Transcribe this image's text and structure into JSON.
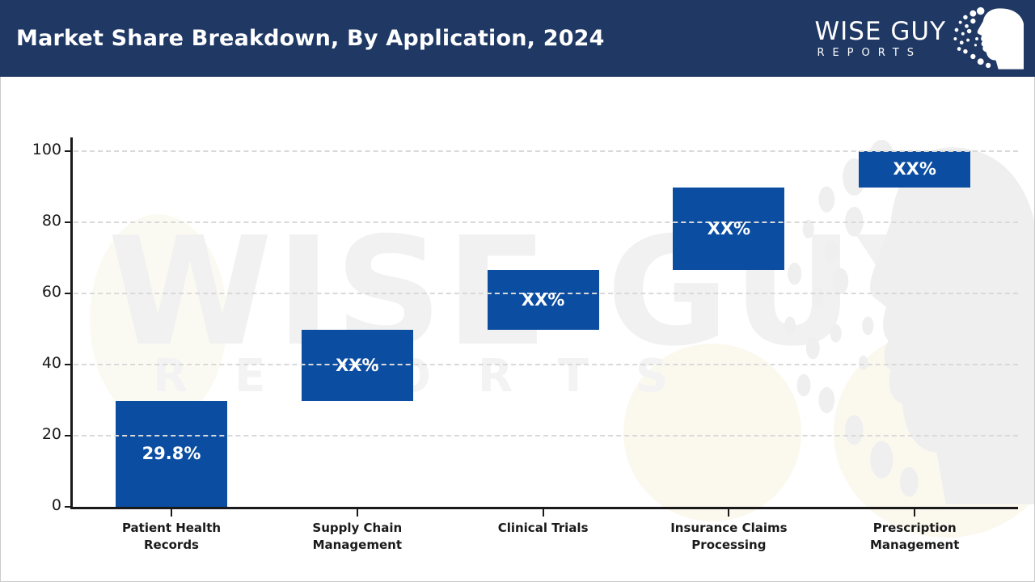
{
  "header": {
    "title": "Market Share Breakdown, By Application, 2024",
    "logo": {
      "line1": "WISE GUY",
      "line2": "REPORTS"
    }
  },
  "watermark": {
    "line1": "WISE GUY",
    "line2": "REPORTS"
  },
  "colors": {
    "header_bg": "#1f3864",
    "bar": "#0b4da1",
    "grid": "#d9d9d9",
    "axis": "#1a1a1a",
    "bar_label": "#ffffff"
  },
  "chart_data": {
    "type": "bar",
    "subtype": "waterfall",
    "title": "Market Share Breakdown, By Application, 2024",
    "categories": [
      "Patient Health\nRecords",
      "Supply Chain\nManagement",
      "Clinical Trials",
      "Insurance Claims\nProcessing",
      "Prescription\nManagement"
    ],
    "segments": [
      {
        "category": "Patient Health Records",
        "label": "29.8%",
        "start": 0,
        "end": 29.8
      },
      {
        "category": "Supply Chain Management",
        "label": "XX%",
        "start": 29.8,
        "end": 49.8
      },
      {
        "category": "Clinical Trials",
        "label": "XX%",
        "start": 49.8,
        "end": 66.5
      },
      {
        "category": "Insurance Claims Processing",
        "label": "XX%",
        "start": 66.5,
        "end": 89.8
      },
      {
        "category": "Prescription Management",
        "label": "XX%",
        "start": 89.8,
        "end": 100
      }
    ],
    "yticks": [
      0,
      20,
      40,
      60,
      80,
      100
    ],
    "ylim": [
      0,
      104
    ],
    "xlabel": "",
    "ylabel": "",
    "grid": "horizontal-dashed",
    "legend": "none"
  }
}
